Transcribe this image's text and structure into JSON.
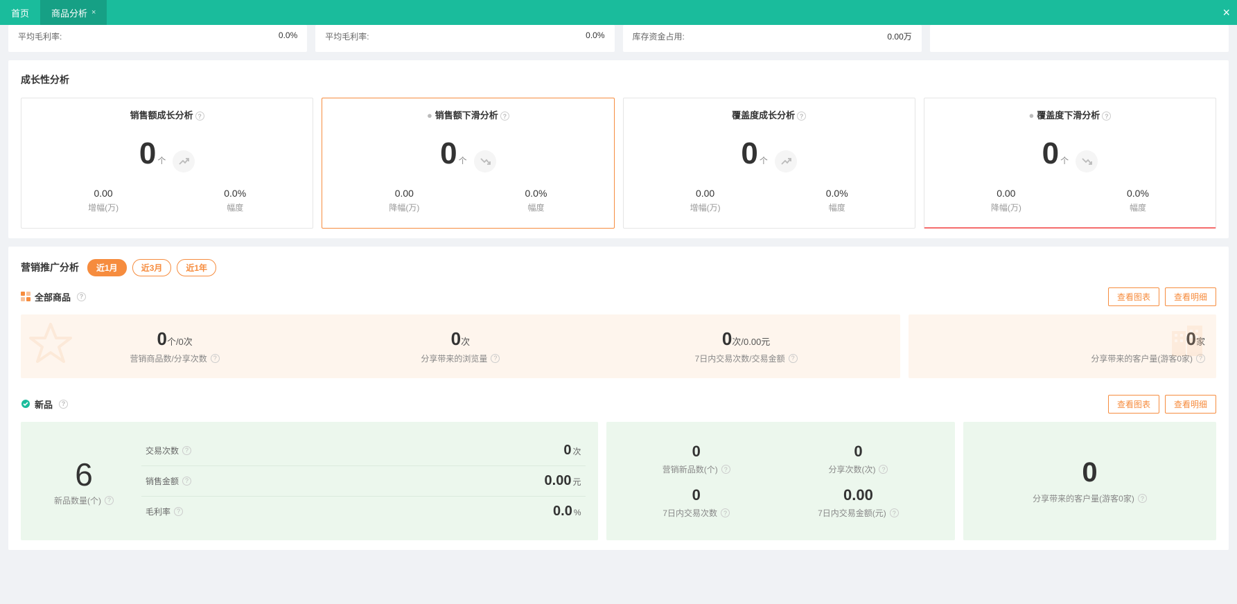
{
  "tabs": {
    "home": "首页",
    "product": "商品分析"
  },
  "topCards": [
    {
      "label": "平均毛利率:",
      "value": "0.0%"
    },
    {
      "label": "平均毛利率:",
      "value": "0.0%"
    },
    {
      "label": "库存资金占用:",
      "value": "0.00万"
    },
    {
      "label": "",
      "value": ""
    }
  ],
  "growth": {
    "title": "成长性分析",
    "cards": [
      {
        "title": "销售额成长分析",
        "big": "0",
        "unit": "个",
        "trend": "up-gray",
        "s1v": "0.00",
        "s1l": "增幅(万)",
        "s2v": "0.0%",
        "s2l": "幅度",
        "warn": false
      },
      {
        "title": "销售额下滑分析",
        "big": "0",
        "unit": "个",
        "trend": "down-gray",
        "s1v": "0.00",
        "s1l": "降幅(万)",
        "s2v": "0.0%",
        "s2l": "幅度",
        "warn": false,
        "selected": true,
        "dim": true
      },
      {
        "title": "覆盖度成长分析",
        "big": "0",
        "unit": "个",
        "trend": "up-gray",
        "s1v": "0.00",
        "s1l": "增幅(万)",
        "s2v": "0.0%",
        "s2l": "幅度",
        "warn": false
      },
      {
        "title": "覆盖度下滑分析",
        "big": "0",
        "unit": "个",
        "trend": "down-gray",
        "s1v": "0.00",
        "s1l": "降幅(万)",
        "s2v": "0.0%",
        "s2l": "幅度",
        "warn": true,
        "dim": true
      }
    ]
  },
  "marketing": {
    "title": "营销推广分析",
    "periods": [
      "近1月",
      "近3月",
      "近1年"
    ],
    "allProducts": {
      "title": "全部商品",
      "btnChart": "查看图表",
      "btnDetail": "查看明细",
      "items": [
        {
          "big": "0",
          "suffix": "个/0次",
          "label": "营销商品数/分享次数"
        },
        {
          "big": "0",
          "suffix": "次",
          "label": "分享带来的浏览量"
        },
        {
          "big": "0",
          "suffix": "次/0.00元",
          "label": "7日内交易次数/交易金额"
        }
      ],
      "right": {
        "big": "0",
        "suffix": "家",
        "label": "分享带来的客户量(游客0家)"
      }
    },
    "newProducts": {
      "title": "新品",
      "btnChart": "查看图表",
      "btnDetail": "查看明细",
      "count": "6",
      "countLabel": "新品数量(个)",
      "list": [
        {
          "label": "交易次数",
          "value": "0",
          "unit": "次"
        },
        {
          "label": "销售金额",
          "value": "0.00",
          "unit": "元"
        },
        {
          "label": "毛利率",
          "value": "0.0",
          "unit": "%"
        }
      ],
      "mid": [
        {
          "v1": "0",
          "l1": "营销新品数(个)",
          "v2": "0",
          "l2": "7日内交易次数"
        },
        {
          "v1": "0",
          "l1": "分享次数(次)",
          "v2": "0.00",
          "l2": "7日内交易金额(元)"
        }
      ],
      "right": {
        "big": "0",
        "label": "分享带来的客户量(游客0家)"
      }
    }
  },
  "colors": {
    "primary": "#1abc9c",
    "primaryDark": "#16a085",
    "orange": "#f68c3e",
    "red": "#f56c6c",
    "promoBg": "#fef5ed",
    "newBg": "#ecf7ed"
  }
}
